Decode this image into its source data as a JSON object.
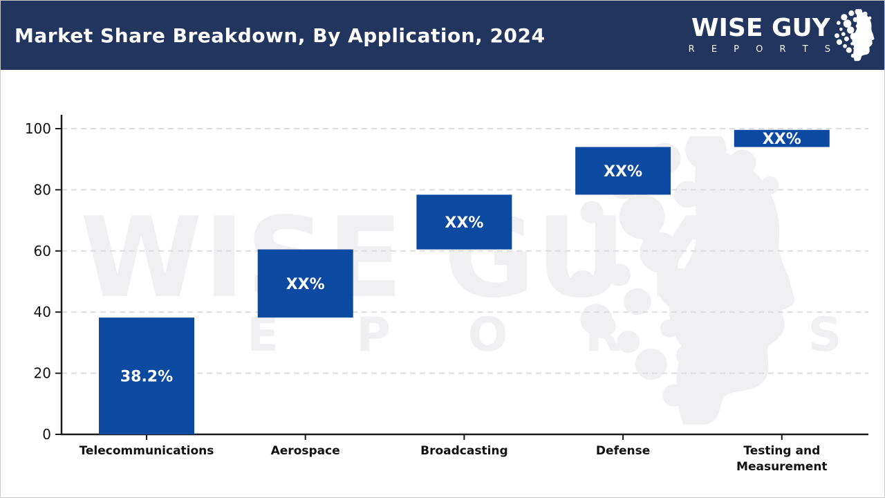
{
  "header": {
    "title": "Market Share Breakdown, By Application, 2024",
    "logo": {
      "line1": "WISE GUY",
      "line2": "R E P O R T S"
    }
  },
  "watermark": {
    "line1": "WISE GUY",
    "line2": "R E P O R T S"
  },
  "chart_data": {
    "type": "bar",
    "subtype": "waterfall",
    "title": "Market Share Breakdown, By Application, 2024",
    "xlabel": "",
    "ylabel": "",
    "ylim": [
      0,
      100
    ],
    "yticks": [
      0,
      20,
      40,
      60,
      80,
      100
    ],
    "grid": "horizontal-dashed",
    "legend": "none",
    "categories": [
      "Telecommunications",
      "Aerospace",
      "Broadcasting",
      "Defense",
      "Testing and Measurement"
    ],
    "category_label_lines": [
      [
        "Telecommunications"
      ],
      [
        "Aerospace"
      ],
      [
        "Broadcasting"
      ],
      [
        "Defense"
      ],
      [
        "Testing and",
        "Measurement"
      ]
    ],
    "segments": [
      {
        "category": "Telecommunications",
        "start": 0,
        "end": 38.2,
        "label": "38.2%"
      },
      {
        "category": "Aerospace",
        "start": 38.2,
        "end": 60.5,
        "label": "XX%"
      },
      {
        "category": "Broadcasting",
        "start": 60.5,
        "end": 78.4,
        "label": "XX%"
      },
      {
        "category": "Defense",
        "start": 78.4,
        "end": 94.0,
        "label": "XX%"
      },
      {
        "category": "Testing and Measurement",
        "start": 94.0,
        "end": 99.6,
        "label": "XX%"
      }
    ],
    "values": [
      38.2,
      22.3,
      17.9,
      15.6,
      5.6
    ]
  },
  "colors": {
    "header_bg": "#21355F",
    "title_text": "#FFFFFF",
    "bar": "#0C4AA2",
    "bar_label": "#FFFFFF",
    "axis": "#1A1A1A",
    "grid": "#DEDEDE",
    "tick_text": "#111111",
    "category_text": "#111111",
    "watermark": "#F0F0F2",
    "page_border": "#C9C9C9"
  }
}
